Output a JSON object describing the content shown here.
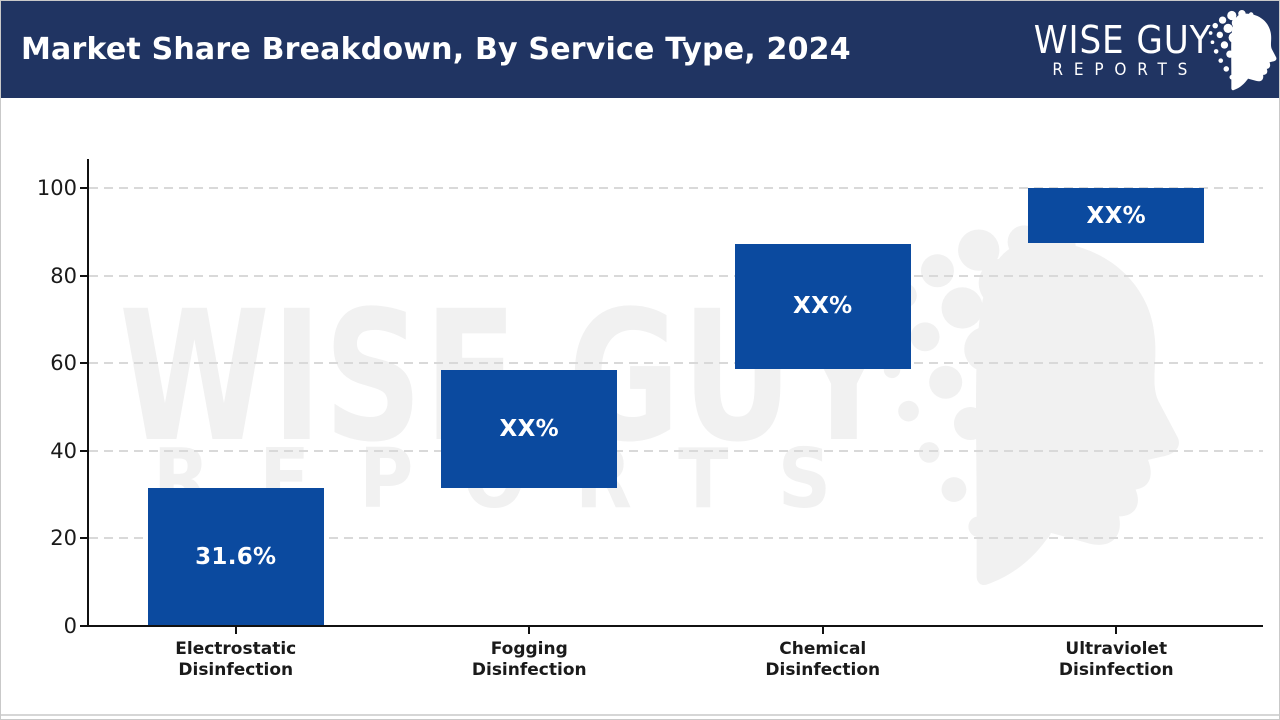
{
  "header": {
    "title": "Market Share Breakdown, By Service Type, 2024",
    "brand": {
      "name": "WISE GUY",
      "tagline": "REPORTS"
    }
  },
  "watermark": {
    "line1": "WISE GUY",
    "line2": "REPORTS"
  },
  "colors": {
    "header_bg": "#203462",
    "bar": "#0b4a9f",
    "grid": "#d9d9d9",
    "watermark": "#f1f1f1",
    "axis": "#111111",
    "text": "#1a1a1a",
    "value_label": "#ffffff"
  },
  "chart_data": {
    "type": "bar",
    "variant": "waterfall",
    "title": "Market Share Breakdown, By Service Type, 2024",
    "categories": [
      "Electrostatic Disinfection",
      "Fogging Disinfection",
      "Chemical Disinfection",
      "Ultraviolet Disinfection"
    ],
    "bars": [
      {
        "category": "Electrostatic Disinfection",
        "start": 0,
        "end": 31.6,
        "label": "31.6%"
      },
      {
        "category": "Fogging Disinfection",
        "start": 31.6,
        "end": 58.5,
        "label": "XX%"
      },
      {
        "category": "Chemical Disinfection",
        "start": 58.7,
        "end": 87.3,
        "label": "XX%"
      },
      {
        "category": "Ultraviolet Disinfection",
        "start": 87.4,
        "end": 100,
        "label": "XX%"
      }
    ],
    "xlabel": "",
    "ylabel": "",
    "ylim": [
      0,
      100
    ],
    "yticks": [
      0,
      20,
      40,
      60,
      80,
      100
    ],
    "grid": "horizontal-dashed",
    "legend": "none"
  }
}
